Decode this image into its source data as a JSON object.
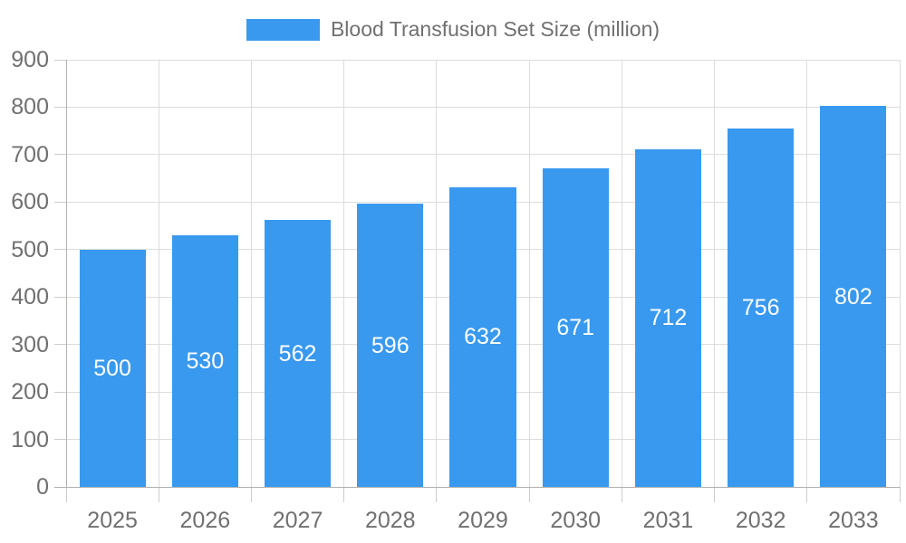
{
  "chart_data": {
    "type": "bar",
    "title": "Blood Transfusion Set Size (million)",
    "legend_entries": [
      "Blood Transfusion Set Size (million)"
    ],
    "legend_position": "top",
    "categories": [
      "2025",
      "2026",
      "2027",
      "2028",
      "2029",
      "2030",
      "2031",
      "2032",
      "2033"
    ],
    "series": [
      {
        "name": "Blood Transfusion Set Size (million)",
        "values": [
          500,
          530,
          562,
          596,
          632,
          671,
          712,
          756,
          802
        ]
      }
    ],
    "xlabel": "",
    "ylabel": "",
    "ylim": [
      0,
      900
    ],
    "ytick_step": 100,
    "grid": true,
    "bar_value_labels_shown": true,
    "colors": {
      "bar": "#3999EF",
      "bar_value_label": "#FFFFFF",
      "axis_text": "#707070",
      "legend_text": "#707070",
      "gridline": "#DDDDDD",
      "tick": "#CCCCCC",
      "axis_line": "#B0B0B0",
      "background": "#FFFFFF"
    }
  }
}
